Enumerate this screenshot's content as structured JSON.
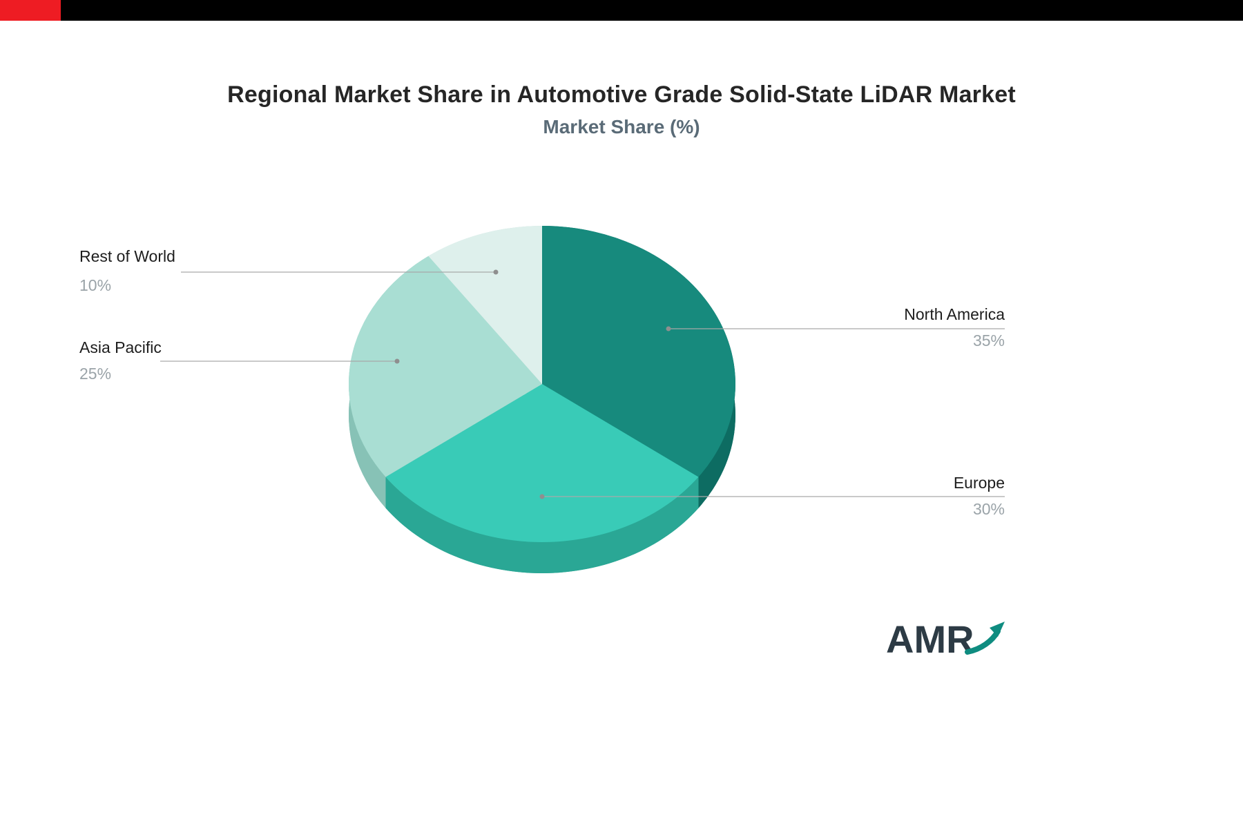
{
  "page": {
    "logo_text": "AMR"
  },
  "chart_data": {
    "type": "pie",
    "title": "Regional Market Share in Automotive Grade Solid-State LiDAR Market",
    "subtitle": "Market Share (%)",
    "unit": "%",
    "start_angle_deg": 0,
    "direction": "clockwise",
    "legend_position": "none",
    "label_style": "callout-lines-with-percent",
    "slices": [
      {
        "label": "North America",
        "value": 35,
        "display": "35%",
        "color": "#178a7d",
        "side_color": "#0d6c62"
      },
      {
        "label": "Europe",
        "value": 30,
        "display": "30%",
        "color": "#39cbb7",
        "side_color": "#2aa795"
      },
      {
        "label": "Asia Pacific",
        "value": 25,
        "display": "25%",
        "color": "#a9ded3",
        "side_color": "#87c2b6"
      },
      {
        "label": "Rest of World",
        "value": 10,
        "display": "10%",
        "color": "#def0ec",
        "side_color": "#c2ddd7"
      }
    ],
    "callout_colors": {
      "line": "#a9a9a9",
      "dot": "#8f8f8f",
      "name_text": "#1d1d1d",
      "percent_text": "#9aa3a8"
    }
  }
}
